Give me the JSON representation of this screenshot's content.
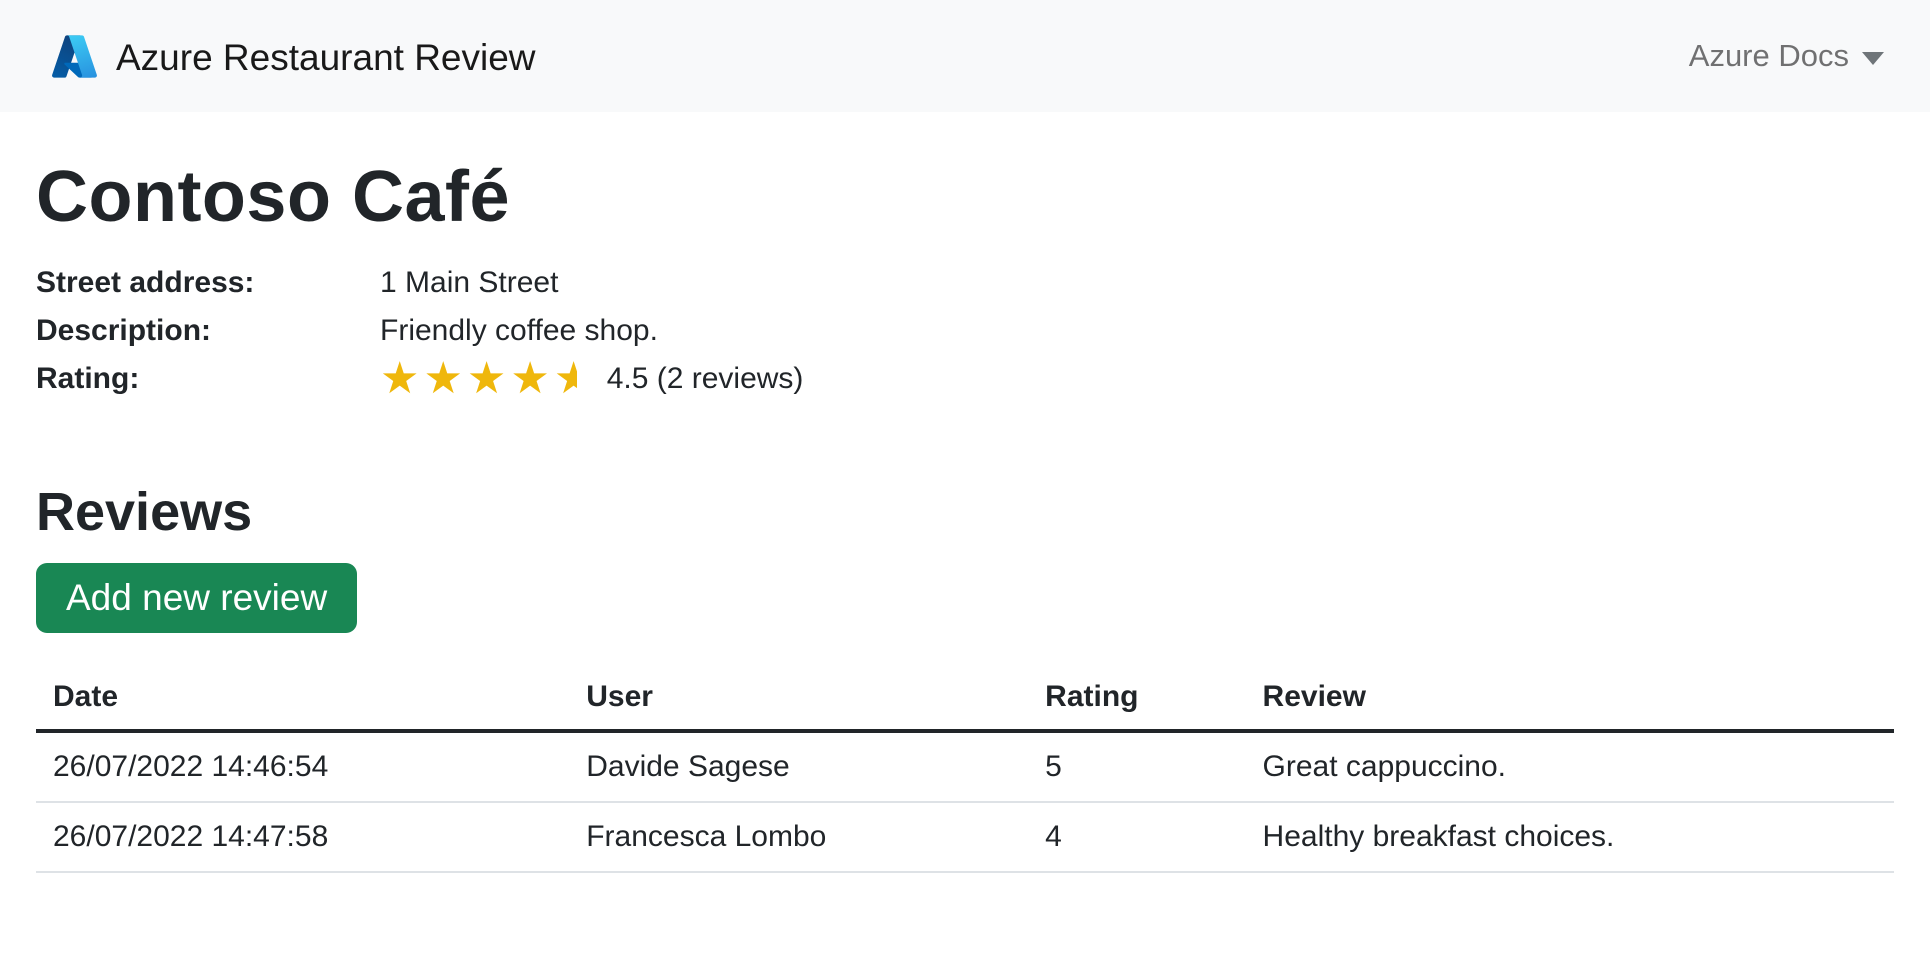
{
  "navbar": {
    "brand": "Azure Restaurant Review",
    "docs_menu_label": "Azure Docs"
  },
  "restaurant": {
    "name": "Contoso Café",
    "details": [
      {
        "label": "Street address:",
        "value": "1 Main Street"
      },
      {
        "label": "Description:",
        "value": "Friendly coffee shop."
      },
      {
        "label": "Rating:",
        "value": "4.5 (2 reviews)",
        "stars": 4.5
      }
    ]
  },
  "reviews": {
    "heading": "Reviews",
    "add_button_label": "Add new review",
    "columns": [
      "Date",
      "User",
      "Rating",
      "Review"
    ],
    "rows": [
      {
        "date": "26/07/2022 14:46:54",
        "user": "Davide Sagese",
        "rating": "5",
        "review": "Great cappuccino."
      },
      {
        "date": "26/07/2022 14:47:58",
        "user": "Francesca Lombo",
        "rating": "4",
        "review": "Healthy breakfast choices."
      }
    ]
  },
  "colors": {
    "star": "#efb70c",
    "add_button": "#198754",
    "navbar_background": "#f8f9fa",
    "text": "#212529",
    "table_header_border": "#212529",
    "table_row_border": "#dee2e6"
  }
}
